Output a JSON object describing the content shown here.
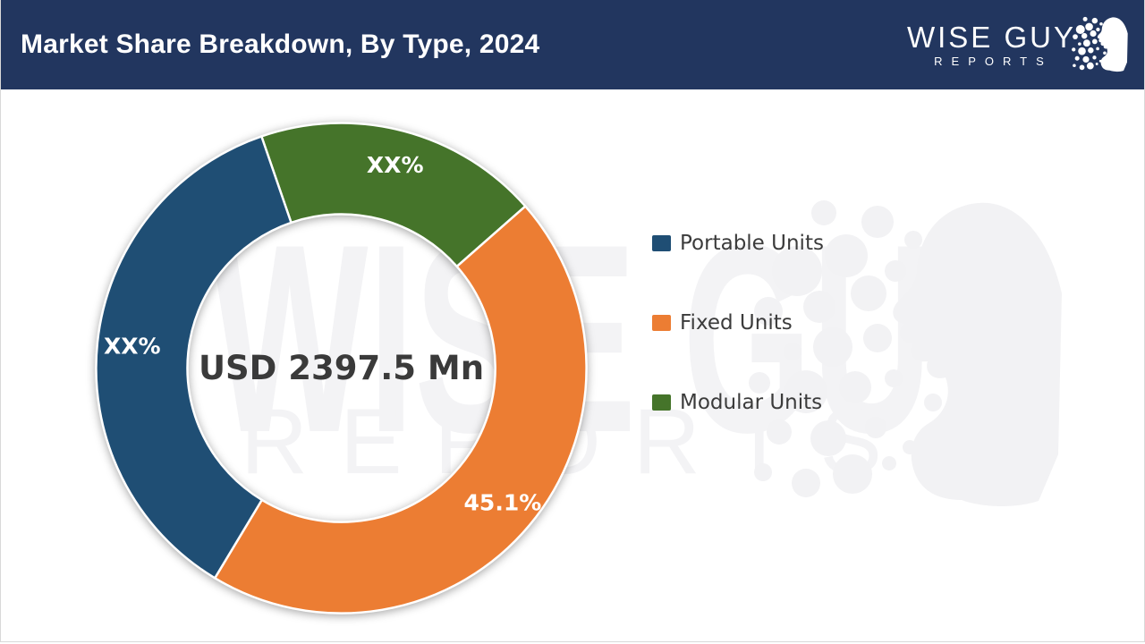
{
  "header": {
    "title": "Market Share Breakdown, By Type, 2024",
    "logo": {
      "line1": "WISE GUY",
      "line2": "REPORTS"
    }
  },
  "watermark": {
    "line1": "WISE GUY",
    "line2": "REPORTS"
  },
  "chart_data": {
    "type": "pie",
    "subtype": "donut",
    "title": "Market Share Breakdown, By Type, 2024",
    "center_label": "USD 2397.5 Mn",
    "legend_position": "right",
    "start_angle_deg_clockwise_from_north": -19,
    "draw_order_clockwise": [
      "Modular Units",
      "Fixed Units",
      "Portable Units"
    ],
    "segments": [
      {
        "name": "Portable Units",
        "value_pct": 36.1,
        "display_label": "XX%",
        "color": "#1f4e74"
      },
      {
        "name": "Fixed Units",
        "value_pct": 45.1,
        "display_label": "45.1%",
        "color": "#ec7d33"
      },
      {
        "name": "Modular Units",
        "value_pct": 18.8,
        "display_label": "XX%",
        "color": "#45742a"
      }
    ]
  },
  "colors": {
    "header_bg": "#22365f",
    "header_text": "#ffffff",
    "card_border": "#d9d9d9",
    "legend_text": "#3b3b3b",
    "center_text": "#3a3a3a",
    "segment_label_text": "#ffffff",
    "watermark": "#f3f3f5"
  }
}
